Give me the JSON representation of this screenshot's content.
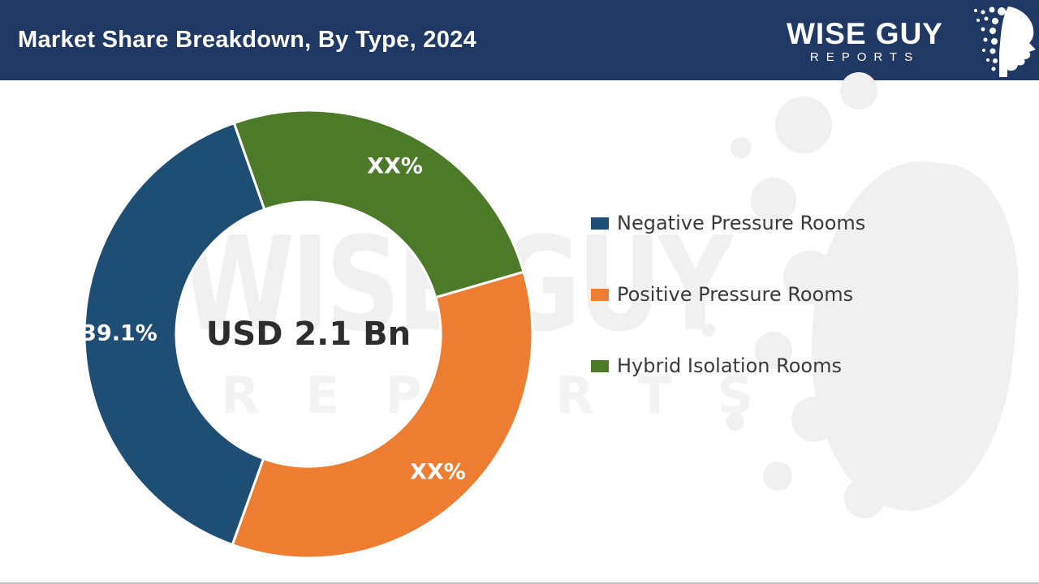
{
  "header": {
    "title": "Market Share Breakdown, By Type, 2024",
    "logo": {
      "line1": "WISE GUY",
      "line2": "REPORTS"
    }
  },
  "colors": {
    "header_bg": "#203864",
    "page_bg": "#ffffff",
    "legend_text": "#3a3a3a",
    "center_text": "#2d2d2d",
    "watermark": "#f0f0f0"
  },
  "watermark": {
    "line1": "WISE GUY",
    "line2": "REPORTS"
  },
  "chart_data": {
    "type": "pie",
    "subtype": "donut",
    "title": "Market Share Breakdown, By Type, 2024",
    "center_label": "USD 2.1 Bn",
    "start_angle_deg": 109.4,
    "direction": "counterclockwise",
    "legend_position": "right",
    "inner_radius_ratio": 0.59,
    "segments": [
      {
        "label": "Negative Pressure Rooms",
        "value_label": "39.1%",
        "percent": 39.1,
        "color": "#1f4e74"
      },
      {
        "label": "Positive Pressure Rooms",
        "value_label": "XX%",
        "percent": 35.0,
        "color": "#ed7d31"
      },
      {
        "label": "Hybrid Isolation Rooms",
        "value_label": "XX%",
        "percent": 25.9,
        "color": "#4c7a28"
      }
    ]
  }
}
